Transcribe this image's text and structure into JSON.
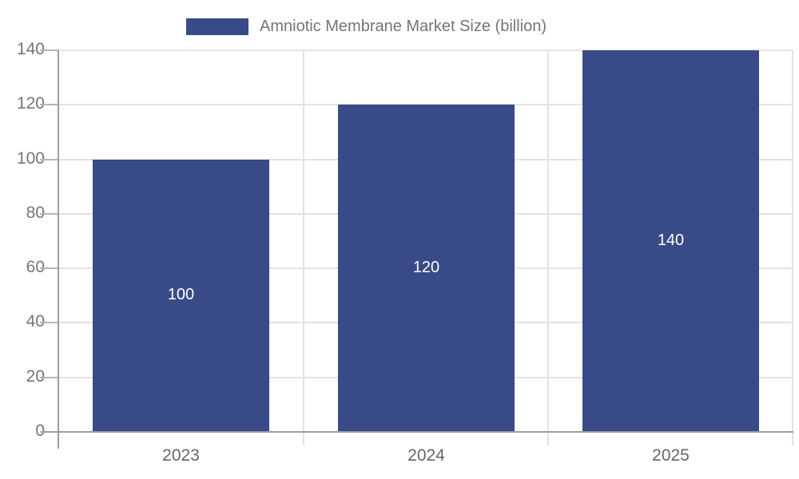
{
  "chart_data": {
    "type": "bar",
    "title": "Amniotic Membrane Market Size (billion)",
    "categories": [
      "2023",
      "2024",
      "2025"
    ],
    "series": [
      {
        "name": "Amniotic Membrane Market Size (billion)",
        "values": [
          100,
          120,
          140
        ]
      }
    ],
    "data_labels": [
      "100",
      "120",
      "140"
    ],
    "xlabel": "",
    "ylabel": "",
    "ylim": [
      0,
      140
    ],
    "yticks": [
      0,
      20,
      40,
      60,
      80,
      100,
      120,
      140
    ],
    "grid": true,
    "legend_position": "top",
    "colors": {
      "bar": "#384A87",
      "bar_label": "#ffffff",
      "legend_text": "#757575",
      "y_tick_text": "#757575",
      "x_tick_text": "#666666",
      "spine": "#9e9e9e",
      "gridline": "#e3e3e3",
      "tick_mark": "#b5b5b5",
      "background": "#ffffff"
    }
  }
}
